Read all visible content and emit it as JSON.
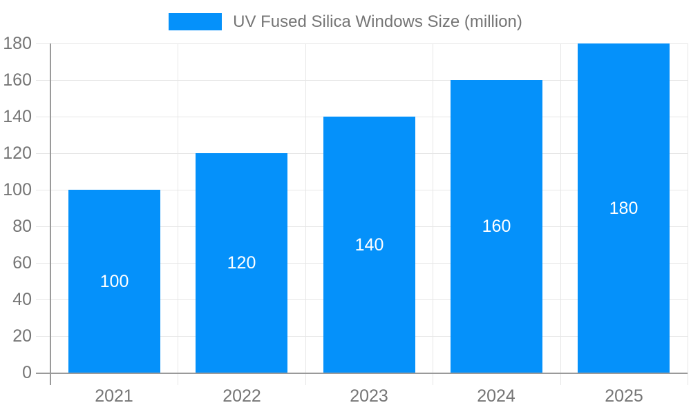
{
  "legend": {
    "label": "UV Fused Silica Windows Size (million)"
  },
  "colors": {
    "bar": "#0591fa",
    "axis": "#9a9a9a",
    "grid": "#e6e6e6",
    "tick_text": "#757575",
    "legend_text": "#757575",
    "bar_label_text": "#ffffff",
    "background": "#ffffff"
  },
  "chart_data": {
    "type": "bar",
    "title": "UV Fused Silica Windows Size (million)",
    "categories": [
      "2021",
      "2022",
      "2023",
      "2024",
      "2025"
    ],
    "series": [
      {
        "name": "UV Fused Silica Windows Size (million)",
        "values": [
          100,
          120,
          140,
          160,
          180
        ]
      }
    ],
    "bar_value_labels": [
      "100",
      "120",
      "140",
      "160",
      "180"
    ],
    "bar_value_label_position": "center-of-bar",
    "xlabel": "",
    "ylabel": "",
    "ylim": [
      0,
      180
    ],
    "yticks": [
      0,
      20,
      40,
      60,
      80,
      100,
      120,
      140,
      160,
      180
    ],
    "grid": true,
    "legend_position": "top-center"
  }
}
